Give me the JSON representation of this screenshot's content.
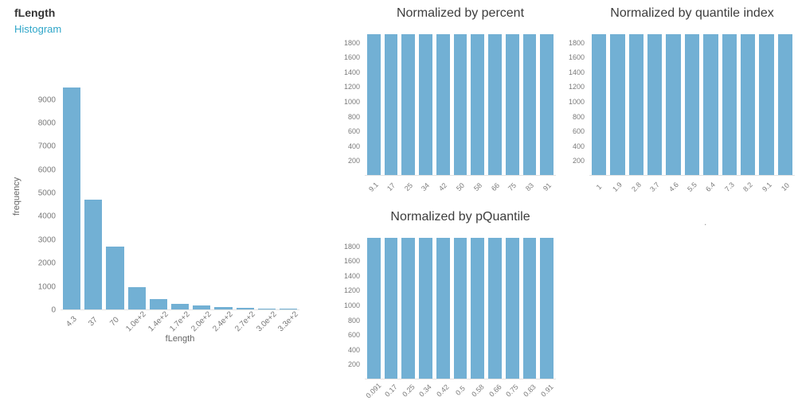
{
  "header": {
    "title": "fLength",
    "subtitle": "Histogram"
  },
  "colors": {
    "bar": "#72b0d4",
    "link": "#2fa6c9",
    "title_text": "#3d3d3d",
    "tick_text": "#7a7a7a"
  },
  "misc": {
    "stray_mark": "."
  },
  "chart_data": [
    {
      "type": "bar",
      "name": "flength-histogram",
      "title": "",
      "xlabel": "fLength",
      "ylabel": "frequency",
      "categories": [
        "4.3",
        "37",
        "70",
        "1.0e+2",
        "1.4e+2",
        "1.7e+2",
        "2.0e+2",
        "2.4e+2",
        "2.7e+2",
        "3.0e+2",
        "3.3e+2"
      ],
      "values": [
        9500,
        4700,
        2700,
        950,
        450,
        250,
        160,
        90,
        60,
        40,
        25
      ],
      "yticks": [
        0,
        1000,
        2000,
        3000,
        4000,
        5000,
        6000,
        7000,
        8000,
        9000
      ],
      "ylim": [
        0,
        9700
      ],
      "grid": false,
      "legend": "none"
    },
    {
      "type": "bar",
      "name": "normalized-by-percent",
      "title": "Normalized by percent",
      "xlabel": "",
      "ylabel": "",
      "categories": [
        "9.1",
        "17",
        "25",
        "34",
        "42",
        "50",
        "58",
        "66",
        "75",
        "83",
        "91"
      ],
      "values": [
        1902,
        1902,
        1902,
        1902,
        1902,
        1902,
        1902,
        1902,
        1902,
        1902,
        1902
      ],
      "yticks": [
        200,
        400,
        600,
        800,
        1000,
        1200,
        1400,
        1600,
        1800
      ],
      "ylim": [
        0,
        2000
      ],
      "grid": false,
      "legend": "none"
    },
    {
      "type": "bar",
      "name": "normalized-by-quantile-index",
      "title": "Normalized by quantile index",
      "xlabel": "",
      "ylabel": "",
      "categories": [
        "1",
        "1.9",
        "2.8",
        "3.7",
        "4.6",
        "5.5",
        "6.4",
        "7.3",
        "8.2",
        "9.1",
        "10"
      ],
      "values": [
        1902,
        1902,
        1902,
        1902,
        1902,
        1902,
        1902,
        1902,
        1902,
        1902,
        1902
      ],
      "yticks": [
        200,
        400,
        600,
        800,
        1000,
        1200,
        1400,
        1600,
        1800
      ],
      "ylim": [
        0,
        2000
      ],
      "grid": false,
      "legend": "none"
    },
    {
      "type": "bar",
      "name": "normalized-by-pquantile",
      "title": "Normalized by pQuantile",
      "xlabel": "",
      "ylabel": "",
      "categories": [
        "0.091",
        "0.17",
        "0.25",
        "0.34",
        "0.42",
        "0.5",
        "0.58",
        "0.66",
        "0.75",
        "0.83",
        "0.91"
      ],
      "values": [
        1902,
        1902,
        1902,
        1902,
        1902,
        1902,
        1902,
        1902,
        1902,
        1902,
        1902
      ],
      "yticks": [
        200,
        400,
        600,
        800,
        1000,
        1200,
        1400,
        1600,
        1800
      ],
      "ylim": [
        0,
        2000
      ],
      "grid": false,
      "legend": "none"
    }
  ]
}
